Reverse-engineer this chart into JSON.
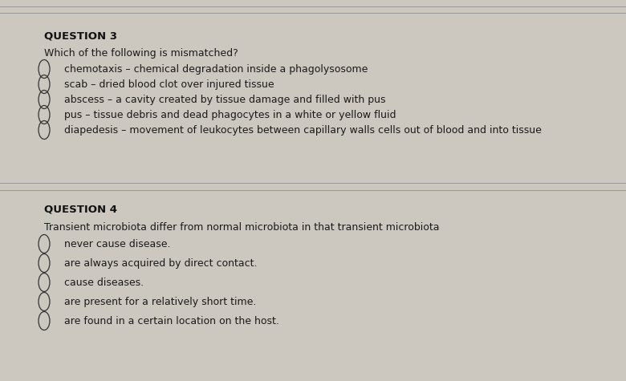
{
  "background_color": "#cdc8bf",
  "separator_color": "#999999",
  "q3_title": "QUESTION 3",
  "q3_question": "Which of the following is mismatched?",
  "q3_options": [
    "chemotaxis – chemical degradation inside a phagolysosome",
    "scab – dried blood clot over injured tissue",
    "abscess – a cavity created by tissue damage and filled with pus",
    "pus – tissue debris and dead phagocytes in a white or yellow fluid",
    "diapedesis – movement of leukocytes between capillary walls cells out of blood and into tissue"
  ],
  "q4_title": "QUESTION 4",
  "q4_question": "Transient microbiota differ from normal microbiota in that transient microbiota",
  "q4_options": [
    "never cause disease.",
    "are always acquired by direct contact.",
    "cause diseases.",
    "are present for a relatively short time.",
    "are found in a certain location on the host."
  ],
  "title_fontsize": 9.5,
  "text_fontsize": 9.0,
  "option_fontsize": 9.0,
  "title_color": "#111111",
  "text_color": "#1a1a1a",
  "circle_color": "#333333",
  "top_lines_color": "#999999"
}
